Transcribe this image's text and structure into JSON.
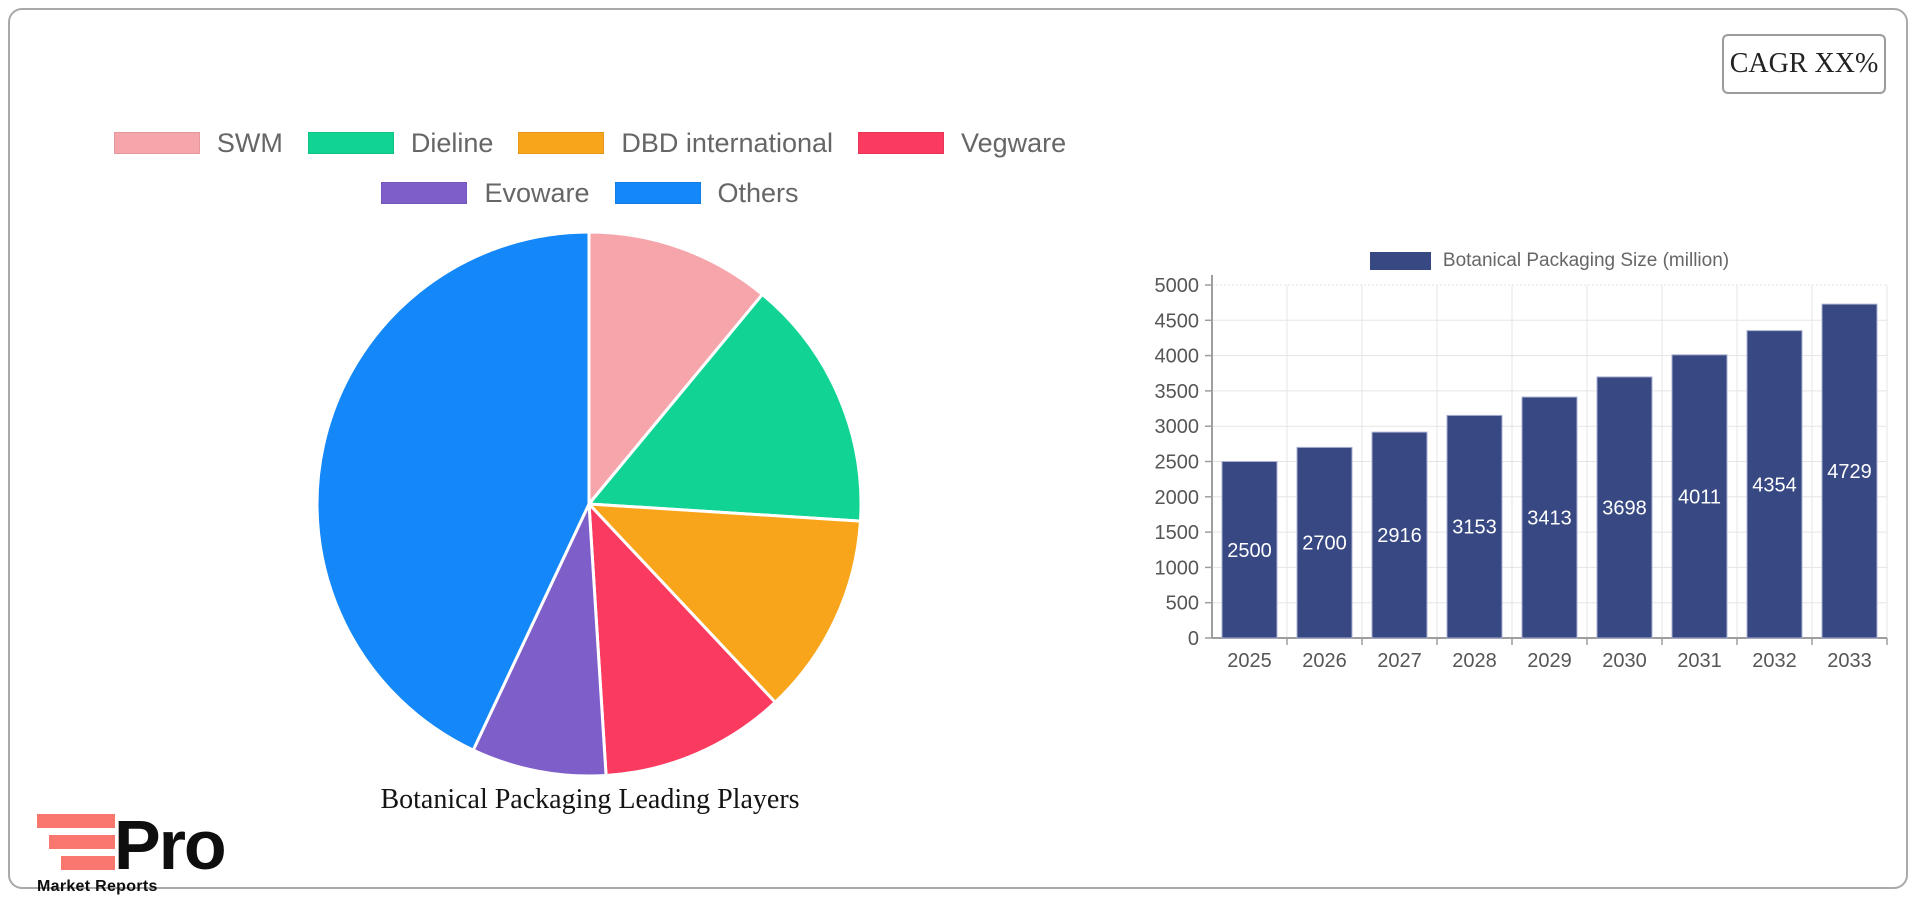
{
  "frame": {
    "cagr_label": "CAGR XX%"
  },
  "logo": {
    "name": "Pro",
    "tagline": "Market Reports",
    "accent_color": "#F9776F"
  },
  "chart_data": [
    {
      "type": "pie",
      "title": "Botanical Packaging Leading Players",
      "labels": [
        "SWM",
        "Dieline",
        "DBD international",
        "Vegware",
        "Evoware",
        "Others"
      ],
      "values_pct": [
        11,
        15,
        12,
        11,
        8,
        43
      ],
      "colors": [
        "#F6A5AA",
        "#10D394",
        "#F9A51B",
        "#FA3A5F",
        "#7E5EC8",
        "#1488F8"
      ],
      "start_angle_deg_from_top": 0,
      "direction": "clockwise",
      "legend_position": "top",
      "legend_rows": [
        4,
        2
      ],
      "slice_border_color": "#ffffff"
    },
    {
      "type": "bar",
      "series_label": "Botanical Packaging Size (million)",
      "categories": [
        "2025",
        "2026",
        "2027",
        "2028",
        "2029",
        "2030",
        "2031",
        "2032",
        "2033"
      ],
      "values": [
        2500,
        2700,
        2916,
        3153,
        3413,
        3698,
        4011,
        4354,
        4729
      ],
      "ylim": [
        0,
        5000
      ],
      "ytick_step": 500,
      "bar_color": "#374883",
      "bar_border_color": "#aab2d2",
      "value_label_color": "#ffffff",
      "grid": true,
      "legend_position": "top",
      "axis_color": "#9e9e9e",
      "grid_color": "#e5e5e5",
      "tick_label_color": "#565656"
    }
  ]
}
